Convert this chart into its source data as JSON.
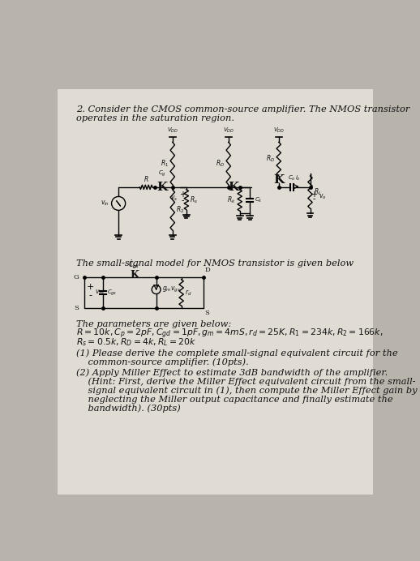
{
  "bg_color": "#b8b4ac",
  "paper_color": "#e0dcd4",
  "title_line1": "2. Consider the CMOS common-source amplifier. The NMOS transistor",
  "title_line2": "operates in the saturation region.",
  "small_signal_label": "The small-signal model for NMOS transistor is given below",
  "params_line1": "The parameters are given below:",
  "params_line2": "R = 10k, C_{p} = 2pF, C_{gd} = 1pF, g_{m} = 4mS, r_{d} = 25K, R_{1} = 234k, R_{2} = 166k,",
  "params_line3": "R_{s} = 0.5k, R_{D} = 4k, R_{L} = 20k",
  "q1_line1": "(1) Please derive the complete small-signal equivalent circuit for the",
  "q1_line2": "    common-source amplifier. (10pts).",
  "q2_line1": "(2) Apply Miller Effect to estimate 3dB bandwidth of the amplifier.",
  "q2_line2": "    (Hint: First, derive the Miller Effect equivalent circuit from the small-",
  "q2_line3": "    signal equivalent circuit in (1), then compute the Miller Effect gain by",
  "q2_line4": "    neglecting the Miller output capacitance and finally estimate the",
  "q2_line5": "    bandwidth). (30pts)"
}
